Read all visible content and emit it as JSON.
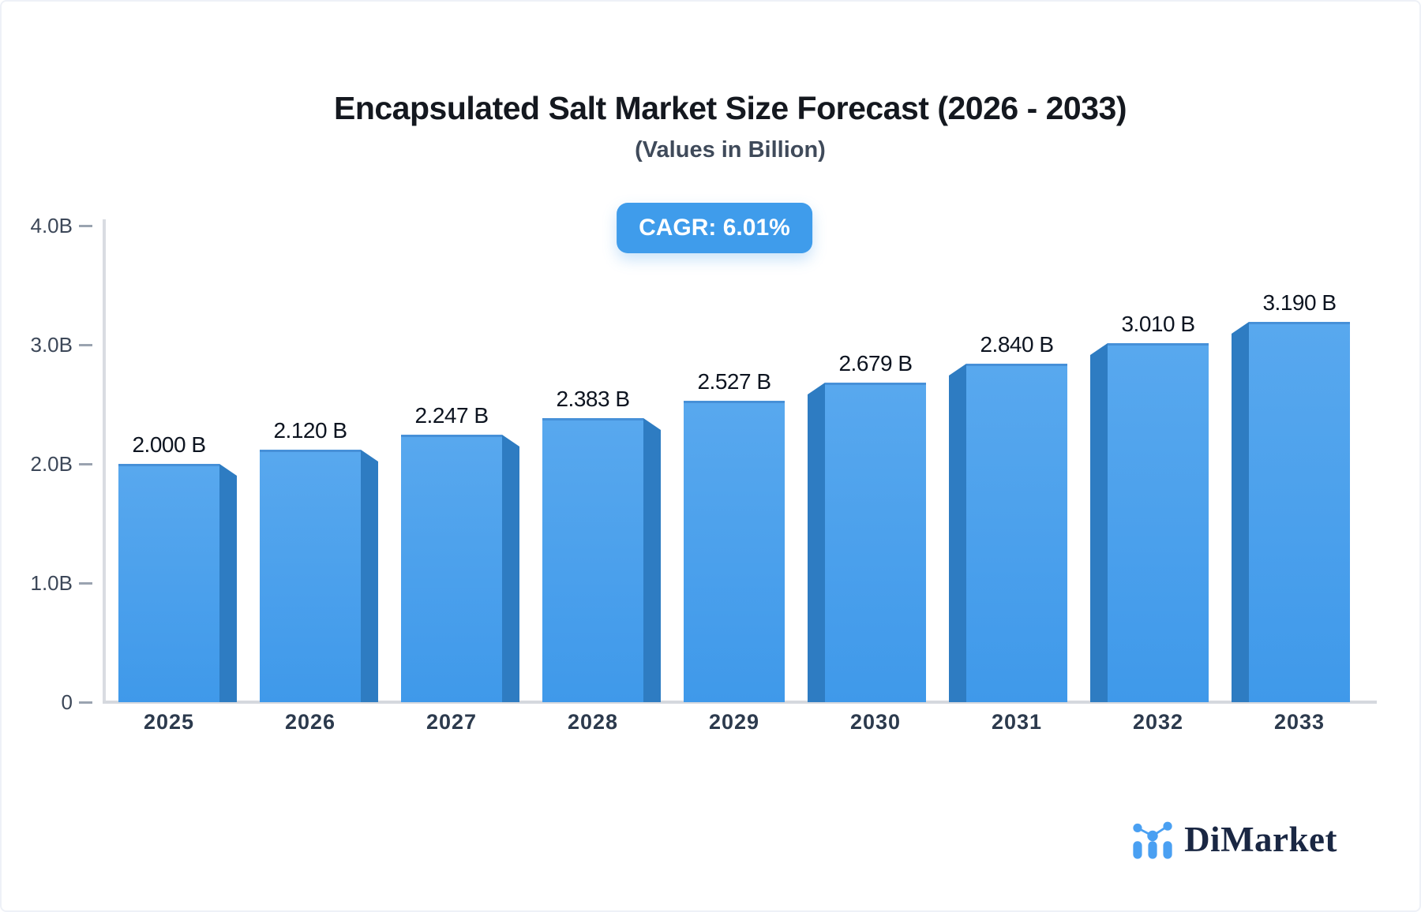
{
  "chart_data": {
    "type": "bar",
    "title": "Encapsulated Salt Market Size Forecast (2026 - 2033)",
    "subtitle": "(Values in Billion)",
    "annotation_cagr": "CAGR: 6.01%",
    "categories": [
      "2025",
      "2026",
      "2027",
      "2028",
      "2029",
      "2030",
      "2031",
      "2032",
      "2033"
    ],
    "values": [
      2.0,
      2.12,
      2.247,
      2.383,
      2.527,
      2.679,
      2.84,
      3.01,
      3.19
    ],
    "value_labels": [
      "2.000 B",
      "2.120 B",
      "2.247 B",
      "2.383 B",
      "2.527 B",
      "2.679 B",
      "2.840 B",
      "3.010 B",
      "3.190 B"
    ],
    "y_ticks": [
      {
        "label": "0",
        "value": 0
      },
      {
        "label": "1.0B",
        "value": 1
      },
      {
        "label": "2.0B",
        "value": 2
      },
      {
        "label": "3.0B",
        "value": 3
      },
      {
        "label": "4.0B",
        "value": 4
      }
    ],
    "ylim": [
      0,
      4
    ],
    "xlabel": "",
    "ylabel": "",
    "grid": false,
    "legend": false,
    "colors": {
      "bar_face_top": "#58a8ee",
      "bar_face_bottom": "#3f99ea",
      "bar_side": "#2e7cc2",
      "badge_background": "#3f9ceb",
      "axis_line": "#d9dce2",
      "tick": "#9aa3b0"
    }
  },
  "branding": {
    "logo_text": "DiMarket",
    "logo_icon": "bar-chart-line-icon",
    "logo_text_color": "#1a2743",
    "logo_icon_color": "#4aa0f2"
  }
}
